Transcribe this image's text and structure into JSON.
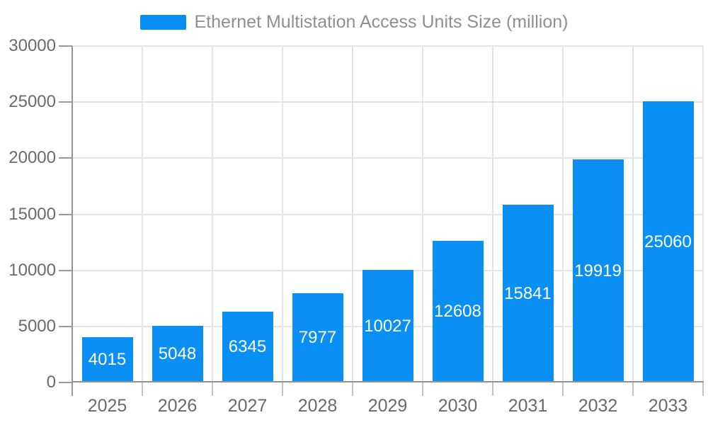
{
  "chart_data": {
    "type": "bar",
    "title": "Ethernet Multistation Access Units Size (million)",
    "legend": [
      "Ethernet Multistation Access Units Size (million)"
    ],
    "legend_position": "top-center",
    "categories": [
      "2025",
      "2026",
      "2027",
      "2028",
      "2029",
      "2030",
      "2031",
      "2032",
      "2033"
    ],
    "values": [
      4015,
      5048,
      6345,
      7977,
      10027,
      12608,
      15841,
      19919,
      25060
    ],
    "xlabel": "",
    "ylabel": "",
    "ylim": [
      0,
      30000
    ],
    "ytick_step": 5000,
    "yticks": [
      0,
      5000,
      10000,
      15000,
      20000,
      25000,
      30000
    ],
    "grid": true,
    "bar_labels_inside": true
  },
  "colors": {
    "bar": "#0a90f4",
    "bar_label": "#ffffff",
    "legend_text": "#8f8f8f",
    "axis_text": "#6a6a6a",
    "axis_line": "#929292",
    "grid_line": "#e4e4e4",
    "y_tick": "#999999",
    "x_tick": "#c2c2c2",
    "background": "#ffffff"
  }
}
